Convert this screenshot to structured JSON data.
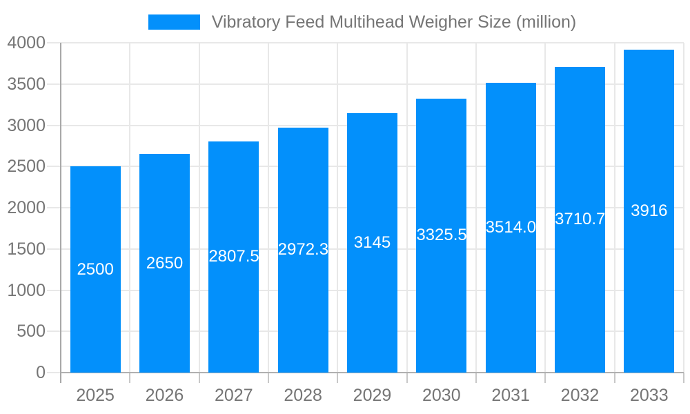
{
  "chart_data": {
    "type": "bar",
    "title": "Vibratory Feed Multihead Weigher Size (million)",
    "legend": {
      "label": "Vibratory Feed Multihead Weigher Size (million)",
      "position": "top"
    },
    "categories": [
      "2025",
      "2026",
      "2027",
      "2028",
      "2029",
      "2030",
      "2031",
      "2032",
      "2033"
    ],
    "series": [
      {
        "name": "Vibratory Feed Multihead Weigher Size (million)",
        "values": [
          2500,
          2650,
          2807.5,
          2972.38,
          3145,
          3325.55,
          3514.03,
          3710.78,
          3916
        ],
        "bar_labels": [
          "2500",
          "2650",
          "2807.5",
          "2972.38",
          "3145",
          "3325.55",
          "3514.03",
          "3710.78",
          "3916"
        ]
      }
    ],
    "xlabel": "",
    "ylabel": "",
    "ylim": [
      0,
      4000
    ],
    "ytick_step": 500,
    "ytick_labels": [
      "0",
      "500",
      "1000",
      "1500",
      "2000",
      "2500",
      "3000",
      "3500",
      "4000"
    ],
    "grid": true,
    "legend_position": "top-center",
    "colors": {
      "bar": "#0390fb",
      "grid": "#e8e8e8",
      "y_axis_line": "#a8a8a8",
      "x_axis_line": "#b0b0b0",
      "x_tick": "#c8c8c8",
      "tick_text": "#757575",
      "bar_label_text": "#ffffff",
      "background": "#ffffff"
    }
  }
}
